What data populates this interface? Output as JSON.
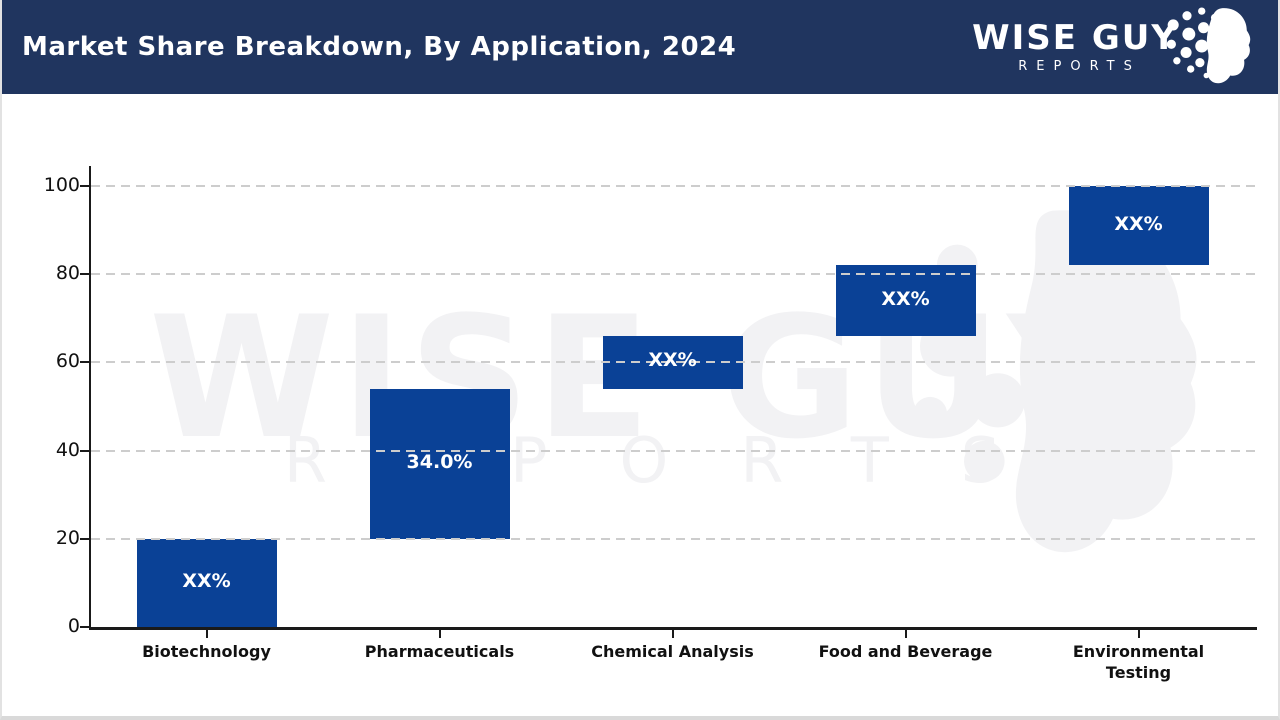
{
  "header": {
    "title": "Market Share Breakdown, By Application, 2024",
    "logo_line1": "WISE GUY",
    "logo_line2": "REPORTS"
  },
  "watermark": {
    "line1": "WISE GUY",
    "line2": "REPORTS"
  },
  "colors": {
    "header_background": "#20355f",
    "bar_blue": "#0a4196",
    "bar_label_white": "#ffffff",
    "gridline_gray": "#cdcdcd",
    "axis_black": "#1a1a1a",
    "watermark_gray": "#f2f2f4"
  },
  "chart_data": {
    "type": "bar",
    "subtype": "waterfall",
    "title": "Market Share Breakdown, By Application, 2024",
    "categories": [
      "Biotechnology",
      "Pharmaceuticals",
      "Chemical Analysis",
      "Food and Beverage",
      "Environmental Testing"
    ],
    "category_label_lines": [
      [
        "Biotechnology"
      ],
      [
        "Pharmaceuticals"
      ],
      [
        "Chemical Analysis"
      ],
      [
        "Food and Beverage"
      ],
      [
        "Environmental",
        "Testing"
      ]
    ],
    "segments": [
      {
        "category": "Biotechnology",
        "start": 0,
        "end": 20
      },
      {
        "category": "Pharmaceuticals",
        "start": 20,
        "end": 54
      },
      {
        "category": "Chemical Analysis",
        "start": 54,
        "end": 66
      },
      {
        "category": "Food and Beverage",
        "start": 66,
        "end": 82
      },
      {
        "category": "Environmental Testing",
        "start": 82,
        "end": 100
      }
    ],
    "values": [
      20,
      34,
      12,
      16,
      18
    ],
    "bar_labels": [
      "XX%",
      "34.0%",
      "XX%",
      "XX%",
      "XX%"
    ],
    "xlabel": "",
    "ylabel": "",
    "ylim": [
      0,
      100
    ],
    "yticks": [
      0,
      20,
      40,
      60,
      80,
      100
    ],
    "grid": "dashed-horizontal",
    "legend": "none"
  }
}
